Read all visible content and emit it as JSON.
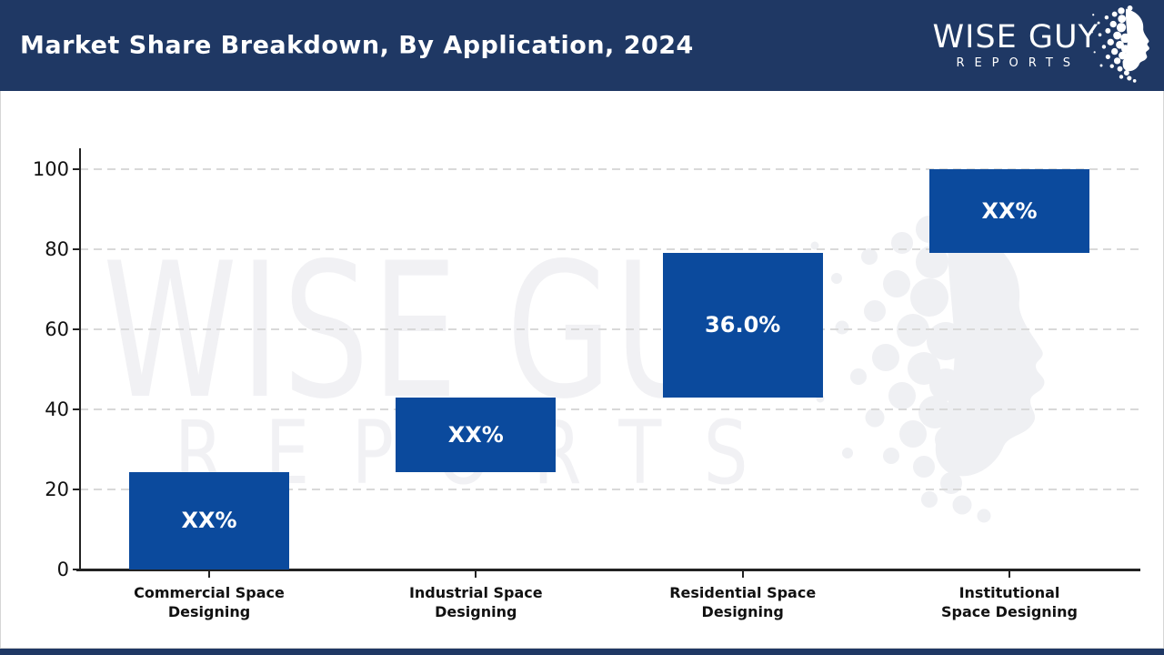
{
  "header": {
    "title": "Market Share Breakdown, By Application, 2024",
    "logo": {
      "line1": "WISE GUY",
      "line2": "REPORTS"
    }
  },
  "watermark": {
    "line1": "WISE GUY",
    "line2": "REPORTS"
  },
  "colors": {
    "header_navy": "#1f3864",
    "bar_blue": "#0b4a9d",
    "grid_gray": "#d9d9d9",
    "watermark_gray": "#f1f1f4"
  },
  "chart_data": {
    "type": "bar",
    "subtype": "floating-waterfall",
    "title": "Market Share Breakdown, By Application, 2024",
    "ylabel": "",
    "xlabel": "",
    "ylim": [
      0,
      104
    ],
    "yticks": [
      0,
      20,
      40,
      60,
      80,
      100
    ],
    "grid": "dashed-horizontal",
    "legend": "none",
    "categories": [
      "Commercial Space\nDesigning",
      "Industrial Space\nDesigning",
      "Residential Space\nDesigning",
      "Institutional\nSpace Designing"
    ],
    "bars": [
      {
        "category": "Commercial Space Designing",
        "start": 0,
        "end": 24.4,
        "label": "XX%"
      },
      {
        "category": "Industrial Space Designing",
        "start": 24.4,
        "end": 43.0,
        "label": "XX%"
      },
      {
        "category": "Residential Space Designing",
        "start": 43.0,
        "end": 79.0,
        "label": "36.0%"
      },
      {
        "category": "Institutional Space Designing",
        "start": 79.0,
        "end": 100.0,
        "label": "XX%"
      }
    ]
  }
}
